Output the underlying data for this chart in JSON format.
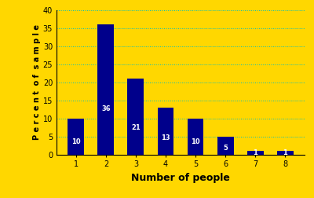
{
  "categories": [
    1,
    2,
    3,
    4,
    5,
    6,
    7,
    8
  ],
  "values": [
    10,
    36,
    21,
    13,
    10,
    5,
    1,
    1
  ],
  "bar_color": "#00008B",
  "background_color": "#FFD700",
  "xlabel": "Number of people",
  "ylabel": "P e r c e n t  o f  s a m p l e",
  "ylim": [
    0,
    40
  ],
  "yticks": [
    0,
    5,
    10,
    15,
    20,
    25,
    30,
    35,
    40
  ],
  "grid_color": "#00BFBF",
  "label_color": "#FFFFFF",
  "label_fontsize": 6,
  "xlabel_fontsize": 9,
  "ylabel_fontsize": 7,
  "tick_fontsize": 7,
  "bar_width": 0.55
}
